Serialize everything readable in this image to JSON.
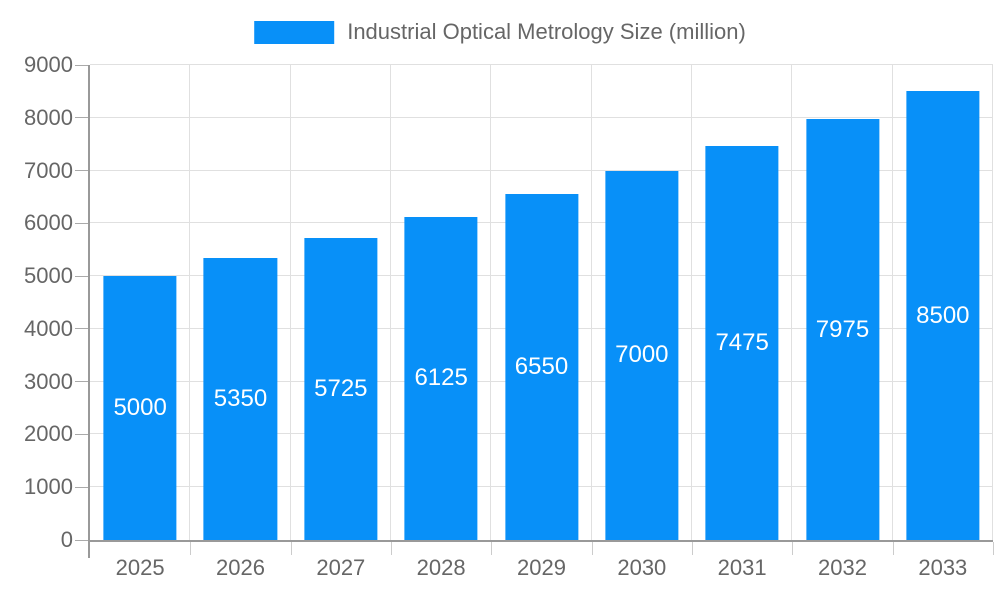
{
  "chart_data": {
    "type": "bar",
    "title": "",
    "legend": "Industrial Optical Metrology Size (million)",
    "legend_position": "top",
    "categories": [
      "2025",
      "2026",
      "2027",
      "2028",
      "2029",
      "2030",
      "2031",
      "2032",
      "2033"
    ],
    "values": [
      5000,
      5350,
      5725,
      6125,
      6550,
      7000,
      7475,
      7975,
      8500
    ],
    "xlabel": "",
    "ylabel": "",
    "ylim": [
      0,
      9000
    ],
    "ytick_step": 1000,
    "grid": true,
    "value_labels": "centered-inside-bars",
    "colors": {
      "bar": "#0890f8",
      "grid": "#e0e0e0",
      "axis": "#999999",
      "tick_label": "#666666",
      "value_label": "#ffffff",
      "legend_text": "#666666"
    }
  }
}
